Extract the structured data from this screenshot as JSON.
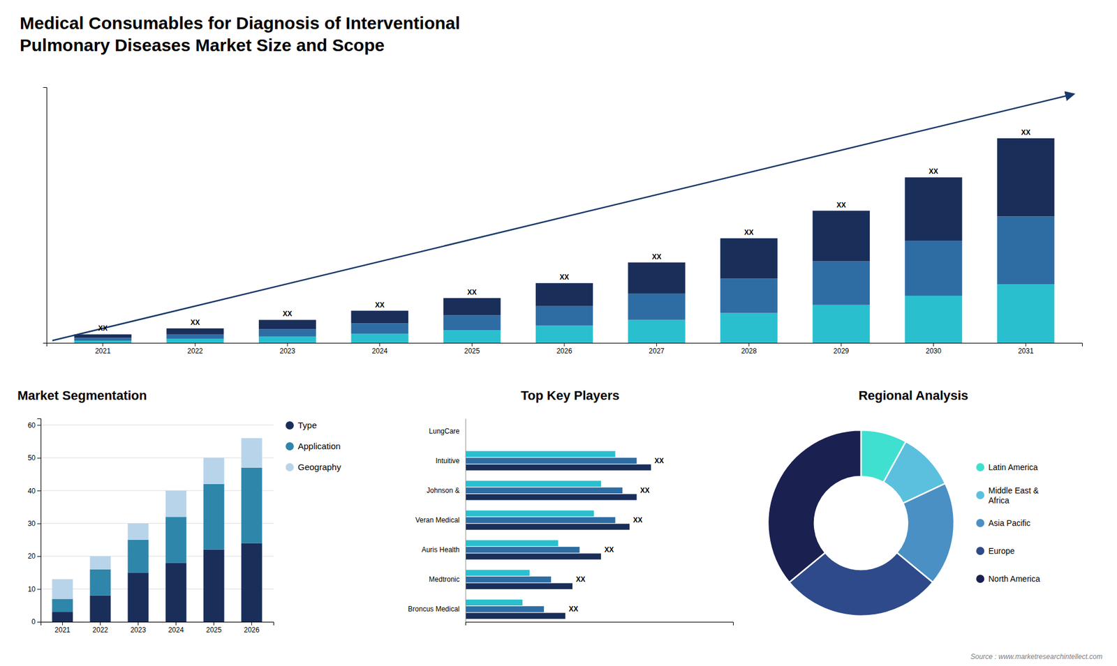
{
  "chart_data": [
    {
      "type": "bar",
      "title": "Medical Consumables for Diagnosis of Interventional\nPulmonary Diseases Market Size and Scope",
      "stacked": true,
      "categories": [
        "2021",
        "2022",
        "2023",
        "2024",
        "2025",
        "2026",
        "2027",
        "2028",
        "2029",
        "2030",
        "2031"
      ],
      "series": [
        {
          "color": "#2abfcf",
          "values": [
            1.0,
            1.8,
            2.8,
            4.0,
            5.5,
            7.5,
            10.0,
            13.0,
            16.5,
            20.5,
            25.5
          ]
        },
        {
          "color": "#2e6da4",
          "values": [
            1.2,
            2.0,
            3.2,
            4.5,
            6.5,
            8.5,
            11.5,
            15.0,
            19.0,
            24.0,
            29.5
          ]
        },
        {
          "color": "#1a2e5a",
          "values": [
            1.5,
            2.5,
            4.0,
            5.5,
            7.5,
            10.0,
            13.5,
            17.5,
            22.0,
            27.5,
            34.0
          ]
        }
      ],
      "ylim": [
        0,
        111.25
      ],
      "tick_labels": "x",
      "grid": false,
      "annotations": [
        {
          "text": "XX",
          "category": "2021"
        },
        {
          "text": "XX",
          "category": "2022"
        },
        {
          "text": "XX",
          "category": "2023"
        },
        {
          "text": "XX",
          "category": "2024"
        },
        {
          "text": "XX",
          "category": "2025"
        },
        {
          "text": "XX",
          "category": "2026"
        },
        {
          "text": "XX",
          "category": "2027"
        },
        {
          "text": "XX",
          "category": "2028"
        },
        {
          "text": "XX",
          "category": "2029"
        },
        {
          "text": "XX",
          "category": "2030"
        },
        {
          "text": "XX",
          "category": "2031"
        }
      ]
    },
    {
      "type": "bar",
      "title": "Market Segmentation",
      "stacked": true,
      "categories": [
        "2021",
        "2022",
        "2023",
        "2024",
        "2025",
        "2026"
      ],
      "series": [
        {
          "name": "Type",
          "color": "#1a2e5a",
          "values": [
            3,
            8,
            15,
            18,
            22,
            24
          ]
        },
        {
          "name": "Application",
          "color": "#2e86ab",
          "values": [
            4,
            8,
            10,
            14,
            20,
            23
          ]
        },
        {
          "name": "Geography",
          "color": "#b8d4ea",
          "values": [
            6,
            4,
            5,
            8,
            8,
            9
          ]
        }
      ],
      "ylim": [
        0,
        62
      ],
      "yticks": [
        0,
        10,
        20,
        30,
        40,
        50,
        60
      ],
      "grid": true,
      "legend": "right"
    },
    {
      "type": "bar",
      "title": "Top Key Players",
      "orientation": "horizontal",
      "categories": [
        "LungCare",
        "Intuitive",
        "Johnson &",
        "Veran Medical",
        "Auris Health",
        "Medtronic",
        "Broncus Medical"
      ],
      "series": [
        {
          "color": "#1a2e5a",
          "values": [
            0.0,
            5.2,
            4.8,
            4.6,
            3.8,
            3.0,
            2.8
          ]
        },
        {
          "color": "#2e6da4",
          "values": [
            0.0,
            4.8,
            4.4,
            4.2,
            3.2,
            2.4,
            2.2
          ]
        },
        {
          "color": "#2abfcf",
          "values": [
            0.0,
            4.2,
            3.8,
            3.6,
            2.6,
            1.8,
            1.6
          ]
        }
      ],
      "xlim": [
        0,
        7.5
      ],
      "tick_labels": "y",
      "annotations": [
        {
          "text": "XX",
          "category": "Intuitive"
        },
        {
          "text": "XX",
          "category": "Johnson &"
        },
        {
          "text": "XX",
          "category": "Veran Medical"
        },
        {
          "text": "XX",
          "category": "Auris Health"
        },
        {
          "text": "XX",
          "category": "Medtronic"
        },
        {
          "text": "XX",
          "category": "Broncus Medical"
        }
      ]
    },
    {
      "type": "donut",
      "title": "Regional Analysis",
      "categories": [
        "Latin America",
        "Middle East &\nAfrica",
        "Asia Pacific",
        "Europe",
        "North America"
      ],
      "values": [
        8,
        10,
        18,
        28,
        36
      ],
      "colors": [
        "#40e0d0",
        "#5bc0de",
        "#4a90c4",
        "#2e4a8a",
        "#1a2050"
      ],
      "legend": "right",
      "annotations": [
        "Source : www.marketresearchintellect.com"
      ]
    }
  ]
}
